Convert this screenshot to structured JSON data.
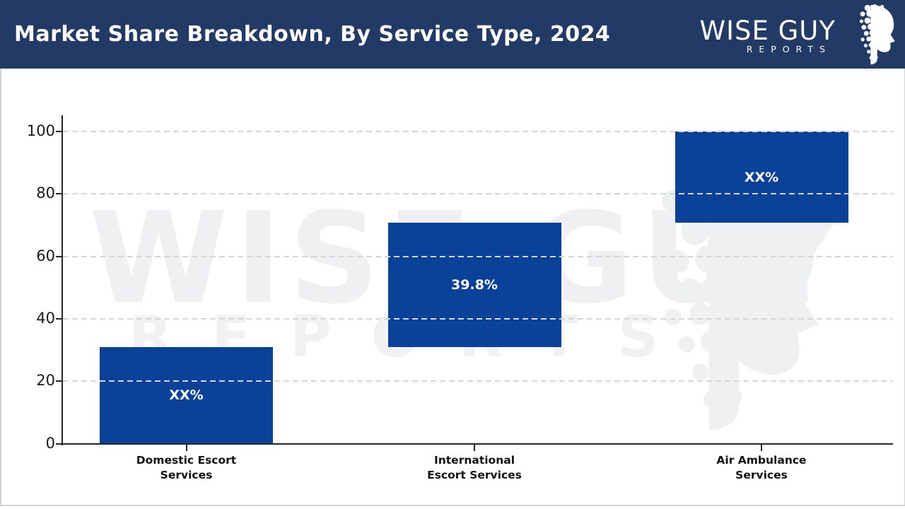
{
  "header": {
    "title": "Market Share Breakdown, By Service Type, 2024",
    "logo": {
      "name": "WISE GUY",
      "sub": "REPORTS"
    }
  },
  "watermark": {
    "name": "WISE GUY",
    "sub": "REPORTS"
  },
  "chart_data": {
    "type": "bar",
    "subtype": "floating cumulative percentage segments (waterfall style)",
    "title": "Market Share Breakdown, By Service Type, 2024",
    "categories": [
      "Domestic Escort\nServices",
      "International\nEscort Services",
      "Air Ambulance\nServices"
    ],
    "bars": [
      {
        "category": "Domestic Escort Services",
        "from": 0,
        "to": 31,
        "label": "XX%"
      },
      {
        "category": "International Escort Services",
        "from": 31,
        "to": 70.8,
        "label": "39.8%"
      },
      {
        "category": "Air Ambulance Services",
        "from": 70.8,
        "to": 100,
        "label": "XX%"
      }
    ],
    "ylim": [
      0,
      100
    ],
    "yticks": [
      0,
      20,
      40,
      60,
      80,
      100
    ],
    "xlabel": "",
    "ylabel": "",
    "grid": "horizontal dashed, drawn above bars",
    "legend": "none",
    "colors": {
      "bar": "#0a429a",
      "bar_label": "#ffffff",
      "grid": "#d6d6d6",
      "axis": "#262626",
      "tick_label": "#1a1a1a",
      "header_bg": "#223a66",
      "header_text": "#ffffff",
      "watermark": "#f0f0f2"
    }
  }
}
